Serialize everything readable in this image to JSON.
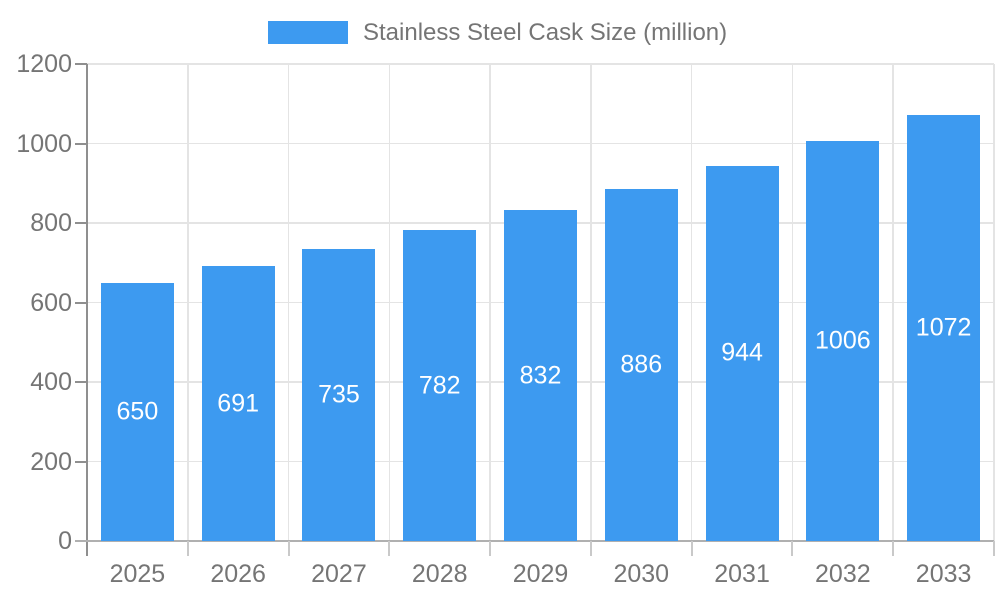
{
  "chart_data": {
    "type": "bar",
    "title": "",
    "legend": {
      "label": "Stainless Steel Cask Size (million)",
      "position": "top"
    },
    "categories": [
      "2025",
      "2026",
      "2027",
      "2028",
      "2029",
      "2030",
      "2031",
      "2032",
      "2033"
    ],
    "values": [
      650,
      691,
      735,
      782,
      832,
      886,
      944,
      1006,
      1072
    ],
    "value_labels_shown": true,
    "xlabel": "",
    "ylabel": "",
    "y_ticks": [
      0,
      200,
      400,
      600,
      800,
      1000,
      1200
    ],
    "ylim": [
      0,
      1200
    ],
    "grid": true,
    "colors": {
      "bar": "#3D9AF0",
      "value_label": "#FFFFFF",
      "axis_text": "#757575",
      "legend_text": "#757575",
      "gridline": "#E4E4E4",
      "y_axis_line": "#8F8F8F",
      "x_axis_line": "#B0B0B0",
      "x_tick": "#C9C9C9",
      "background": "#FFFFFF"
    }
  }
}
